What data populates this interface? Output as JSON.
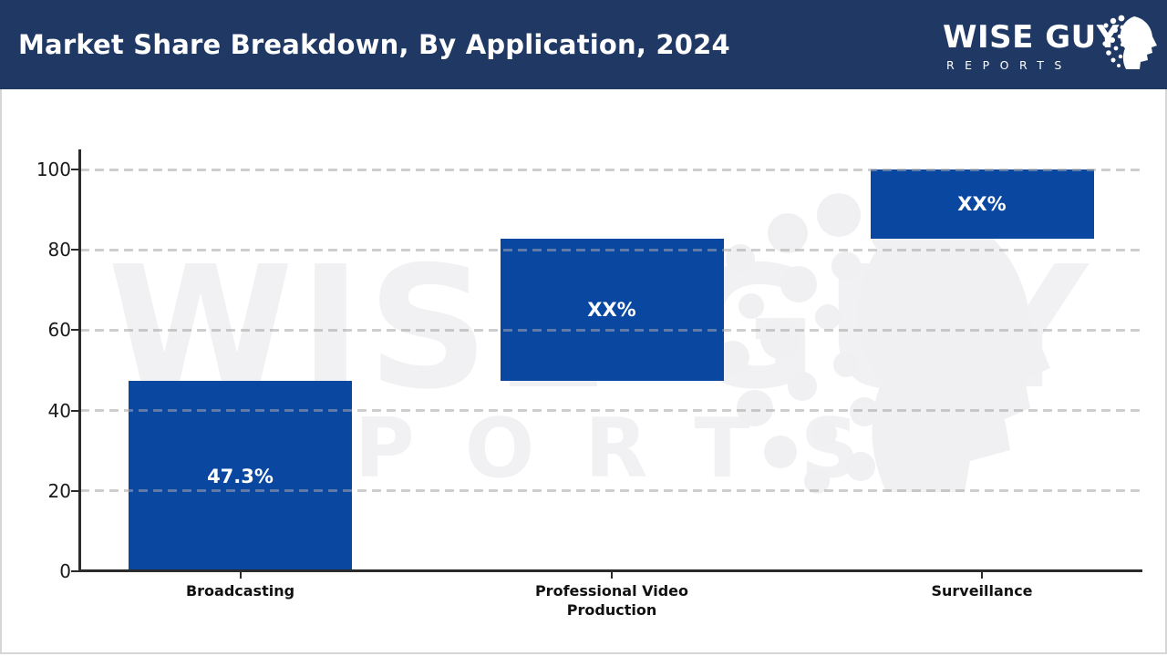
{
  "header": {
    "title": "Market Share Breakdown, By Application, 2024",
    "logo": {
      "line1": "WISE GUY",
      "line2": "REPORTS"
    }
  },
  "watermark": {
    "line1": "WISE GUY",
    "line2": "REPORTS"
  },
  "chart_data": {
    "type": "bar",
    "subtype": "floating-waterfall-breakdown",
    "title": "Market Share Breakdown, By Application, 2024",
    "categories": [
      "Broadcasting",
      "Professional Video Production",
      "Surveillance"
    ],
    "segments": [
      {
        "category": "Broadcasting",
        "start": 0,
        "end": 47.3,
        "label": "47.3%"
      },
      {
        "category": "Professional Video Production",
        "start": 47.3,
        "end": 82.7,
        "label": "XX%"
      },
      {
        "category": "Surveillance",
        "start": 82.7,
        "end": 100,
        "label": "XX%"
      }
    ],
    "y_ticks": [
      0,
      20,
      40,
      60,
      80,
      100
    ],
    "ylim": [
      0,
      100
    ],
    "xlabel": "",
    "ylabel": "",
    "grid": "horizontal-dashed-over-bars",
    "legend": "none"
  },
  "colors": {
    "header_bg": "#1f3864",
    "bar": "#0a47a0",
    "bar_value_label": "#ffffff",
    "axis": "#2b2b2b",
    "gridline": "#a5a5a5",
    "tick_label": "#1a1a1a",
    "watermark": "#f1f1f4",
    "frame_border": "#d6d6d6"
  }
}
